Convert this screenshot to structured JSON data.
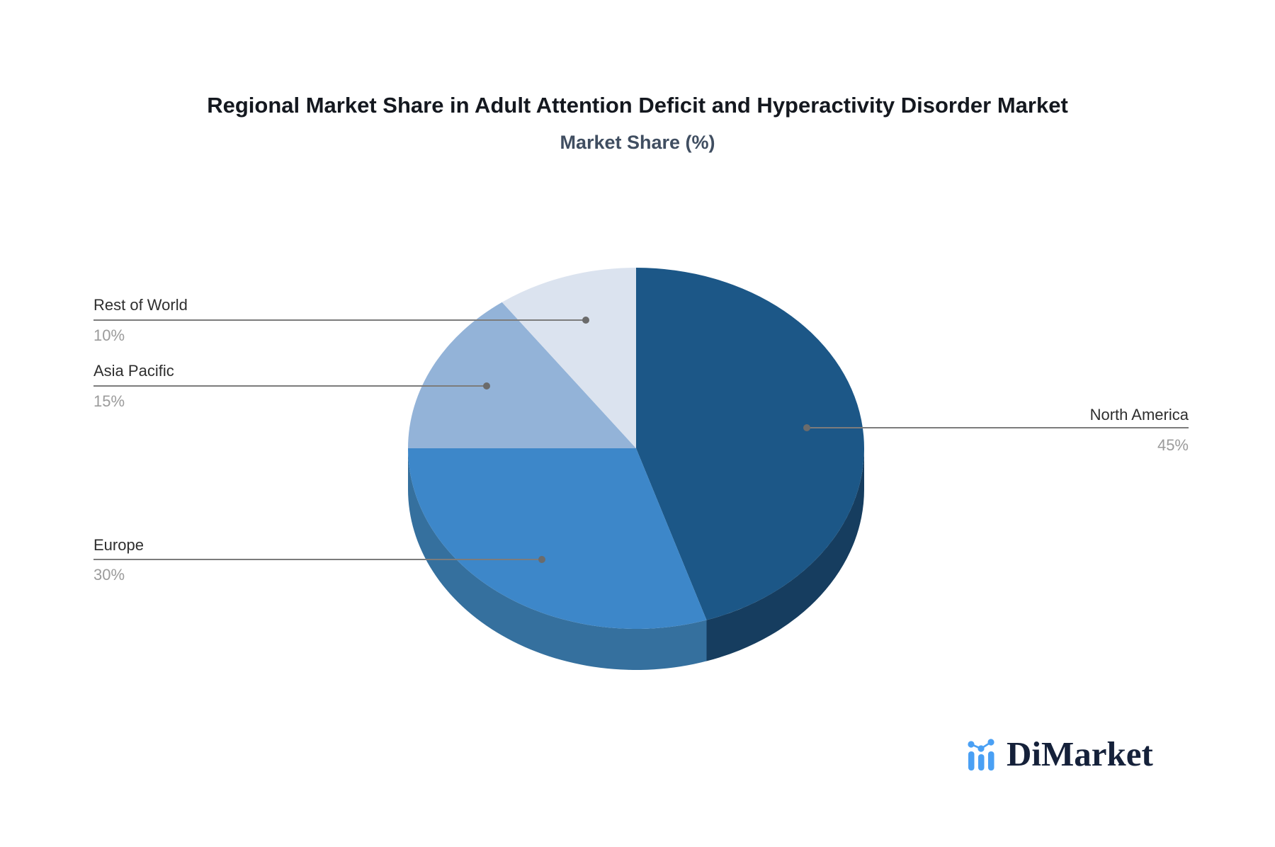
{
  "header": {
    "title": "Regional Market Share in Adult Attention Deficit and Hyperactivity Disorder Market",
    "subtitle": "Market Share (%)"
  },
  "chart_data": {
    "type": "pie",
    "title": "Regional Market Share in Adult Attention Deficit and Hyperactivity Disorder Market",
    "subtitle": "Market Share (%)",
    "unit": "%",
    "effect": "3d",
    "start_angle_deg": 0,
    "direction": "clockwise",
    "legend": "none",
    "categories": [
      "North America",
      "Europe",
      "Asia Pacific",
      "Rest of World"
    ],
    "values": [
      45,
      30,
      15,
      10
    ],
    "slices": [
      {
        "label": "North America",
        "value": 45,
        "display_value": "45%",
        "color": "#1C5787",
        "side_color": "#163D5F",
        "label_side": "right"
      },
      {
        "label": "Europe",
        "value": 30,
        "display_value": "30%",
        "color": "#3D87C9",
        "side_color": "#35709E",
        "label_side": "left"
      },
      {
        "label": "Asia Pacific",
        "value": 15,
        "display_value": "15%",
        "color": "#93B3D8",
        "side_color": "#7FA3C9",
        "label_side": "left"
      },
      {
        "label": "Rest of World",
        "value": 10,
        "display_value": "10%",
        "color": "#DBE3EF",
        "side_color": "#C4D1E3",
        "label_side": "left"
      }
    ],
    "label_text_color": "#2E2E2E",
    "value_text_color": "#9B9B9B",
    "leader_line_color": "#7C7C7C",
    "leader_dot_color": "#6B6B6B"
  },
  "branding": {
    "logo_text": "DiMarket",
    "logo_icon": "bar-chart-trend-icon",
    "logo_text_color": "#15213A",
    "logo_icon_color": "#4AA0F4"
  }
}
